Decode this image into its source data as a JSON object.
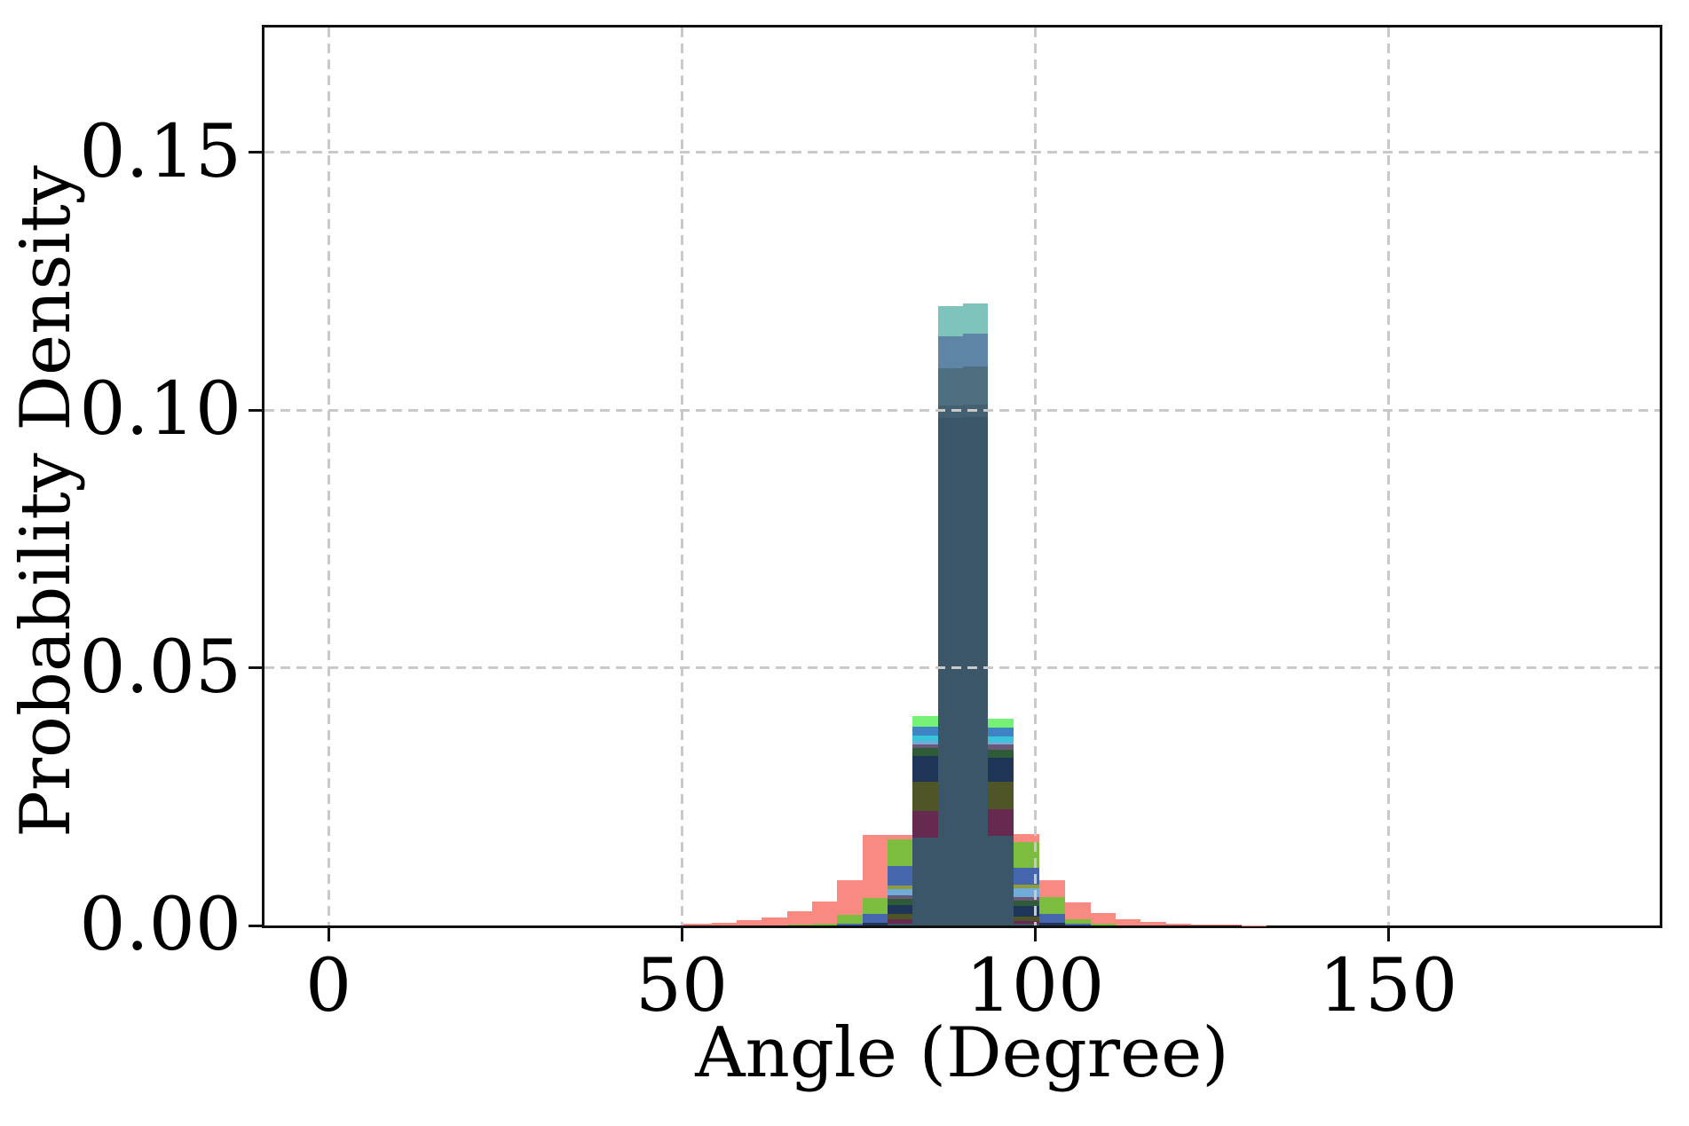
{
  "chart_data": {
    "type": "bar",
    "subtype": "overlaid-histograms-composite",
    "title": "",
    "xlabel": "Angle (Degree)",
    "ylabel": "Probability Density",
    "xlim": [
      -9.05,
      188.44
    ],
    "ylim": [
      0,
      0.1742
    ],
    "x_ticks": [
      0,
      50,
      100,
      150
    ],
    "x_tick_labels": [
      "0",
      "50",
      "100",
      "150"
    ],
    "y_ticks": [
      0.0,
      0.05,
      0.1,
      0.15
    ],
    "y_tick_labels": [
      "0.00",
      "0.05",
      "0.10",
      "0.15"
    ],
    "grid": {
      "visible": true,
      "style": "dashed",
      "color": "#c9c9c9",
      "drawn_above_bars": true
    },
    "spine_color": "#111111",
    "background_color": "#ffffff",
    "palette": {
      "salmon": "#F98A82",
      "green": "#7CBD40",
      "royal": "#4566AC",
      "brightgreen": "#75F175",
      "steelblue": "#3E84C4",
      "cyan": "#38C4DB",
      "lightblue": "#70ACD8",
      "graypurple": "#6B5878",
      "darkgreen": "#2E5C38",
      "navy": "#1F3557",
      "olive": "#4F5526",
      "oliveLight": "#909B3A",
      "magenta": "#662A50",
      "teal": "#7FC3BD",
      "bluegray": "#5E84A6",
      "slate": "#4E6F80",
      "slate2": "#436170",
      "darkslate": "#3B5669"
    },
    "series_summary": [
      {
        "name": "salmon-wide",
        "color": "#F98A82",
        "approx_peak_density": 0.033,
        "visible_span_deg": [
          50,
          133
        ]
      },
      {
        "name": "yellow-green",
        "color": "#7CBD40",
        "approx_peak_density": 0.04,
        "visible_span_deg": [
          65,
          112
        ]
      },
      {
        "name": "royal-blue",
        "color": "#4566AC",
        "approx_peak_density": 0.045,
        "visible_span_deg": [
          72,
          108
        ]
      },
      {
        "name": "bright-green",
        "color": "#75F175",
        "approx_peak_density": 0.0406,
        "visible_span_deg": [
          82.7,
          97.0
        ]
      },
      {
        "name": "steel-blue",
        "color": "#3E84C4",
        "approx_peak_density": 0.0386,
        "visible_span_deg": [
          82.7,
          97.0
        ]
      },
      {
        "name": "cyan",
        "color": "#38C4DB",
        "approx_peak_density": 0.0368,
        "visible_span_deg": [
          82.7,
          97.0
        ]
      },
      {
        "name": "light-blue",
        "color": "#70ACD8",
        "approx_peak_density": 0.0358,
        "visible_span_deg": [
          79.1,
          100.6
        ]
      },
      {
        "name": "gray-purple",
        "color": "#6B5878",
        "approx_peak_density": 0.0352,
        "visible_span_deg": [
          79.1,
          100.6
        ]
      },
      {
        "name": "dark-green",
        "color": "#2E5C38",
        "approx_peak_density": 0.0344,
        "visible_span_deg": [
          79.1,
          100.6
        ]
      },
      {
        "name": "navy",
        "color": "#1F3557",
        "approx_peak_density": 0.0328,
        "visible_span_deg": [
          75.6,
          100.6
        ]
      },
      {
        "name": "olive",
        "color": "#4F5526",
        "approx_peak_density": 0.0279,
        "visible_span_deg": [
          79.1,
          100.6
        ]
      },
      {
        "name": "magenta",
        "color": "#662A50",
        "approx_peak_density": 0.0222,
        "visible_span_deg": [
          79.1,
          100.6
        ]
      },
      {
        "name": "teal",
        "color": "#7FC3BD",
        "approx_peak_density": 0.1206,
        "visible_span_deg": [
          86.3,
          93.3
        ]
      },
      {
        "name": "blue-gray",
        "color": "#5E84A6",
        "approx_peak_density": 0.1148,
        "visible_span_deg": [
          86.3,
          93.3
        ]
      },
      {
        "name": "slate",
        "color": "#4E6F80",
        "approx_peak_density": 0.1084,
        "visible_span_deg": [
          86.3,
          93.3
        ]
      },
      {
        "name": "dark-slate",
        "color": "#3B5669",
        "approx_peak_density": 0.101,
        "visible_span_deg": [
          82.7,
          97.0
        ]
      }
    ],
    "bins": [
      {
        "x0": 50.3,
        "x1": 54.3,
        "segments": [
          [
            0.0003,
            "salmon"
          ]
        ]
      },
      {
        "x0": 54.3,
        "x1": 57.8,
        "segments": [
          [
            0.0006,
            "salmon"
          ]
        ]
      },
      {
        "x0": 57.8,
        "x1": 61.3,
        "segments": [
          [
            0.001,
            "salmon"
          ]
        ]
      },
      {
        "x0": 61.3,
        "x1": 64.9,
        "segments": [
          [
            0.0015,
            "salmon"
          ]
        ]
      },
      {
        "x0": 64.9,
        "x1": 68.5,
        "segments": [
          [
            0.0028,
            "salmon"
          ],
          [
            0.0002,
            "green"
          ]
        ]
      },
      {
        "x0": 68.5,
        "x1": 72.0,
        "segments": [
          [
            0.0046,
            "salmon"
          ],
          [
            0.0004,
            "green"
          ]
        ]
      },
      {
        "x0": 72.0,
        "x1": 75.6,
        "segments": [
          [
            0.0088,
            "salmon"
          ],
          [
            0.002,
            "green"
          ],
          [
            0.0003,
            "royal"
          ]
        ]
      },
      {
        "x0": 75.6,
        "x1": 79.1,
        "segments": [
          [
            0.0176,
            "salmon"
          ],
          [
            0.0053,
            "green"
          ],
          [
            0.0022,
            "royal"
          ],
          [
            0.0005,
            "navy"
          ]
        ]
      },
      {
        "x0": 79.1,
        "x1": 82.7,
        "segments": [
          [
            0.0176,
            "salmon"
          ],
          [
            0.0167,
            "green"
          ],
          [
            0.0115,
            "royal"
          ],
          [
            0.0078,
            "oliveLight"
          ],
          [
            0.007,
            "lightblue"
          ],
          [
            0.0058,
            "graypurple"
          ],
          [
            0.0051,
            "darkgreen"
          ],
          [
            0.004,
            "navy"
          ],
          [
            0.0022,
            "olive"
          ],
          [
            0.0012,
            "magenta"
          ],
          [
            0.0004,
            "darkslate"
          ]
        ]
      },
      {
        "x0": 82.7,
        "x1": 86.3,
        "segments": [
          [
            0.0406,
            "brightgreen"
          ],
          [
            0.0386,
            "steelblue"
          ],
          [
            0.0368,
            "cyan"
          ],
          [
            0.0358,
            "lightblue"
          ],
          [
            0.0352,
            "graypurple"
          ],
          [
            0.0344,
            "darkgreen"
          ],
          [
            0.0328,
            "navy"
          ],
          [
            0.0279,
            "olive"
          ],
          [
            0.0222,
            "magenta"
          ],
          [
            0.0171,
            "darkslate"
          ]
        ]
      },
      {
        "x0": 86.3,
        "x1": 89.8,
        "segments": [
          [
            0.1201,
            "teal"
          ],
          [
            0.1143,
            "bluegray"
          ],
          [
            0.1081,
            "slate"
          ],
          [
            0.1009,
            "slate2"
          ],
          [
            0.0985,
            "darkslate"
          ]
        ]
      },
      {
        "x0": 89.8,
        "x1": 93.3,
        "segments": [
          [
            0.1206,
            "teal"
          ],
          [
            0.1148,
            "bluegray"
          ],
          [
            0.1084,
            "slate"
          ],
          [
            0.101,
            "slate2"
          ],
          [
            0.0986,
            "darkslate"
          ]
        ]
      },
      {
        "x0": 93.3,
        "x1": 97.0,
        "segments": [
          [
            0.0401,
            "brightgreen"
          ],
          [
            0.0384,
            "steelblue"
          ],
          [
            0.0367,
            "cyan"
          ],
          [
            0.0357,
            "lightblue"
          ],
          [
            0.0351,
            "graypurple"
          ],
          [
            0.0341,
            "darkgreen"
          ],
          [
            0.0325,
            "navy"
          ],
          [
            0.0279,
            "olive"
          ],
          [
            0.0225,
            "magenta"
          ],
          [
            0.0174,
            "darkslate"
          ]
        ]
      },
      {
        "x0": 97.0,
        "x1": 100.6,
        "segments": [
          [
            0.0177,
            "salmon"
          ],
          [
            0.0162,
            "green"
          ],
          [
            0.0112,
            "royal"
          ],
          [
            0.0079,
            "oliveLight"
          ],
          [
            0.0072,
            "lightblue"
          ],
          [
            0.0055,
            "graypurple"
          ],
          [
            0.0048,
            "darkgreen"
          ],
          [
            0.0038,
            "navy"
          ],
          [
            0.0017,
            "olive"
          ],
          [
            0.0009,
            "magenta"
          ],
          [
            0.0003,
            "darkslate"
          ]
        ]
      },
      {
        "x0": 100.6,
        "x1": 104.3,
        "segments": [
          [
            0.0088,
            "salmon"
          ],
          [
            0.0055,
            "green"
          ],
          [
            0.0023,
            "royal"
          ],
          [
            0.0005,
            "navy"
          ]
        ]
      },
      {
        "x0": 104.3,
        "x1": 107.9,
        "segments": [
          [
            0.0045,
            "salmon"
          ],
          [
            0.0012,
            "green"
          ],
          [
            0.0004,
            "royal"
          ]
        ]
      },
      {
        "x0": 107.9,
        "x1": 111.4,
        "segments": [
          [
            0.0024,
            "salmon"
          ],
          [
            0.0004,
            "green"
          ]
        ]
      },
      {
        "x0": 111.4,
        "x1": 115.0,
        "segments": [
          [
            0.0012,
            "salmon"
          ]
        ]
      },
      {
        "x0": 115.0,
        "x1": 118.6,
        "segments": [
          [
            0.0007,
            "salmon"
          ]
        ]
      },
      {
        "x0": 118.6,
        "x1": 122.1,
        "segments": [
          [
            0.0004,
            "salmon"
          ]
        ]
      },
      {
        "x0": 122.1,
        "x1": 125.8,
        "segments": [
          [
            0.0002,
            "salmon"
          ]
        ]
      },
      {
        "x0": 125.8,
        "x1": 129.3,
        "segments": [
          [
            0.0001,
            "salmon"
          ]
        ]
      },
      {
        "x0": 129.3,
        "x1": 132.8,
        "segments": [
          [
            8e-05,
            "salmon"
          ]
        ]
      }
    ]
  }
}
